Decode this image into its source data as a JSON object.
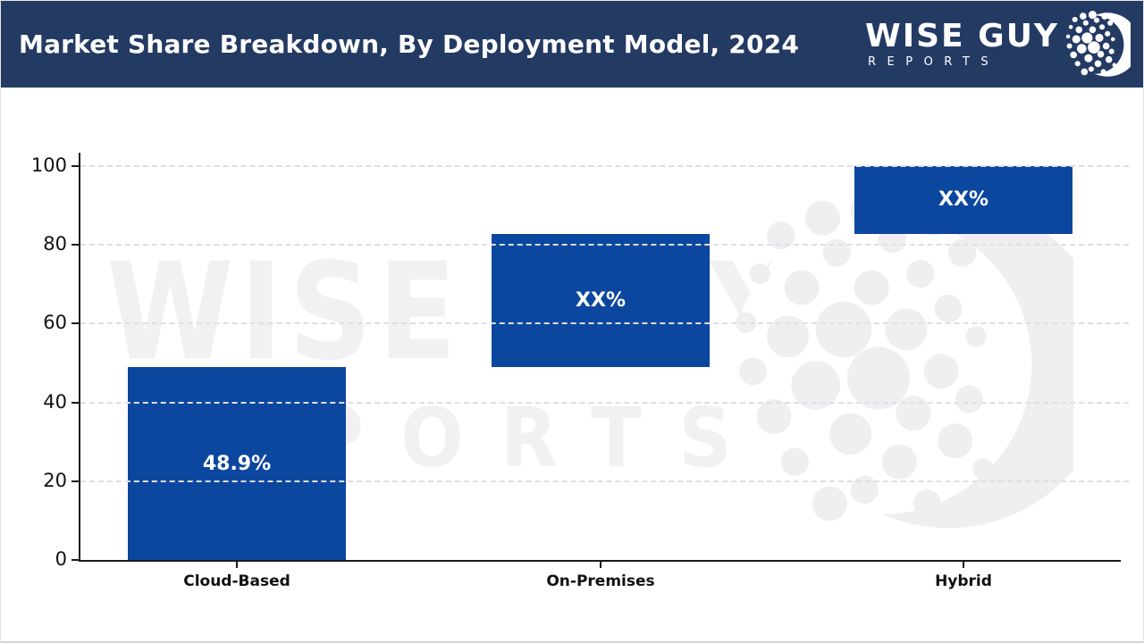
{
  "header": {
    "title": "Market Share Breakdown, By Deployment Model, 2024",
    "bg_color": "#233a63",
    "logo": {
      "line1": "WISE GUY",
      "line2": "REPORTS"
    }
  },
  "watermark": {
    "line1": "WISE GUY",
    "line2": "REPORTS"
  },
  "chart_data": {
    "type": "bar",
    "subtype": "waterfall",
    "title": "Market Share Breakdown, By Deployment Model, 2024",
    "categories": [
      "Cloud-Based",
      "On-Premises",
      "Hybrid"
    ],
    "segments": [
      {
        "category": "Cloud-Based",
        "start": 0,
        "end": 48.9,
        "label": "48.9%"
      },
      {
        "category": "On-Premises",
        "start": 48.9,
        "end": 82.8,
        "label": "XX%"
      },
      {
        "category": "Hybrid",
        "start": 82.8,
        "end": 100,
        "label": "XX%"
      }
    ],
    "yticks": [
      0,
      20,
      40,
      60,
      80,
      100
    ],
    "ylim": [
      0,
      103
    ],
    "xlabel": "",
    "ylabel": "",
    "grid": "dashed horizontal gridlines",
    "legend": "none",
    "bar_color": "#0c479f",
    "bar_label_color": "#ffffff",
    "axis_color": "#1a1a1a"
  }
}
